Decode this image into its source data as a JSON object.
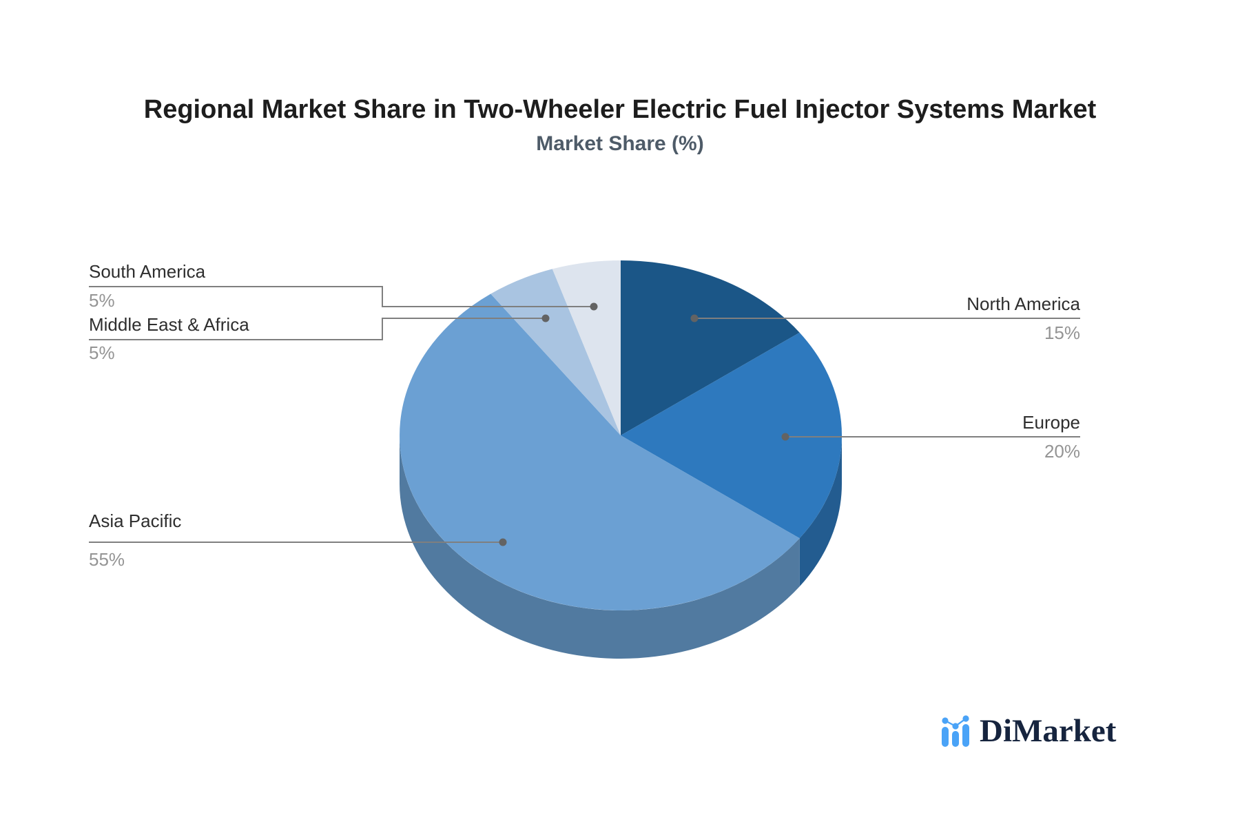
{
  "page": {
    "background": "#ffffff"
  },
  "chart_data": {
    "type": "pie",
    "title": "Regional Market Share in Two-Wheeler Electric Fuel Injector Systems Market",
    "subtitle": "Market Share (%)",
    "unit": "percent",
    "effect": "3d",
    "start_angle_deg": 0,
    "direction": "clockwise",
    "legend_position": "none",
    "labels_style": "outside-with-connectors",
    "slices": [
      {
        "name": "North America",
        "value": 15,
        "value_label": "15%",
        "color": "#1b5687"
      },
      {
        "name": "Europe",
        "value": 20,
        "value_label": "20%",
        "color": "#2e79be"
      },
      {
        "name": "Asia Pacific",
        "value": 55,
        "value_label": "55%",
        "color": "#6ba0d3"
      },
      {
        "name": "Middle East & Africa",
        "value": 5,
        "value_label": "5%",
        "color": "#a9c4e1"
      },
      {
        "name": "South America",
        "value": 5,
        "value_label": "5%",
        "color": "#dde4ee"
      }
    ],
    "connector_color": "#7f7f7f",
    "dot_color": "#636363"
  },
  "branding": {
    "logo_text": "DiMarket"
  }
}
